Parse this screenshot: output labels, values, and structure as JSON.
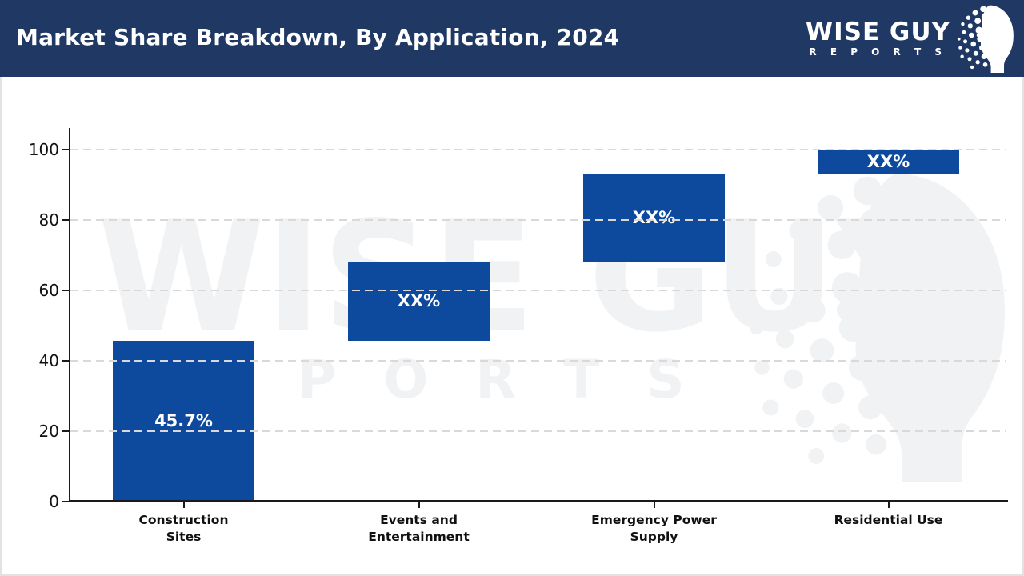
{
  "header": {
    "title": "Market Share Breakdown, By Application, 2024",
    "logo": {
      "wordmark": "WISE GUY",
      "subtext": "R E P O R T S"
    }
  },
  "watermark": {
    "line1": "WISE GUY",
    "line2": "R E P O R T S"
  },
  "chart_data": {
    "type": "bar",
    "variant": "waterfall",
    "title": "Market Share Breakdown, By Application, 2024",
    "categories": [
      "Construction Sites",
      "Events and Entertainment",
      "Emergency Power Supply",
      "Residential Use"
    ],
    "segments": [
      {
        "category": "Construction Sites",
        "start": 0,
        "end": 45.7,
        "label": "45.7%"
      },
      {
        "category": "Events and Entertainment",
        "start": 45.7,
        "end": 68.2,
        "label": "XX%"
      },
      {
        "category": "Emergency Power Supply",
        "start": 68.2,
        "end": 93.0,
        "label": "XX%"
      },
      {
        "category": "Residential Use",
        "start": 93.0,
        "end": 100.0,
        "label": "XX%"
      }
    ],
    "xlabel": "",
    "ylabel": "",
    "ylim": [
      0,
      106
    ],
    "yticks": [
      0,
      20,
      40,
      60,
      80,
      100
    ],
    "grid": "horizontal-dashed",
    "legend": "none",
    "colors": {
      "bar": "#0d4a9d",
      "bar_label": "#ffffff",
      "axis": "#1a1a1a",
      "gridline": "#d9d9d9",
      "header_bg": "#1f3864",
      "watermark": "#f1f2f4"
    }
  }
}
